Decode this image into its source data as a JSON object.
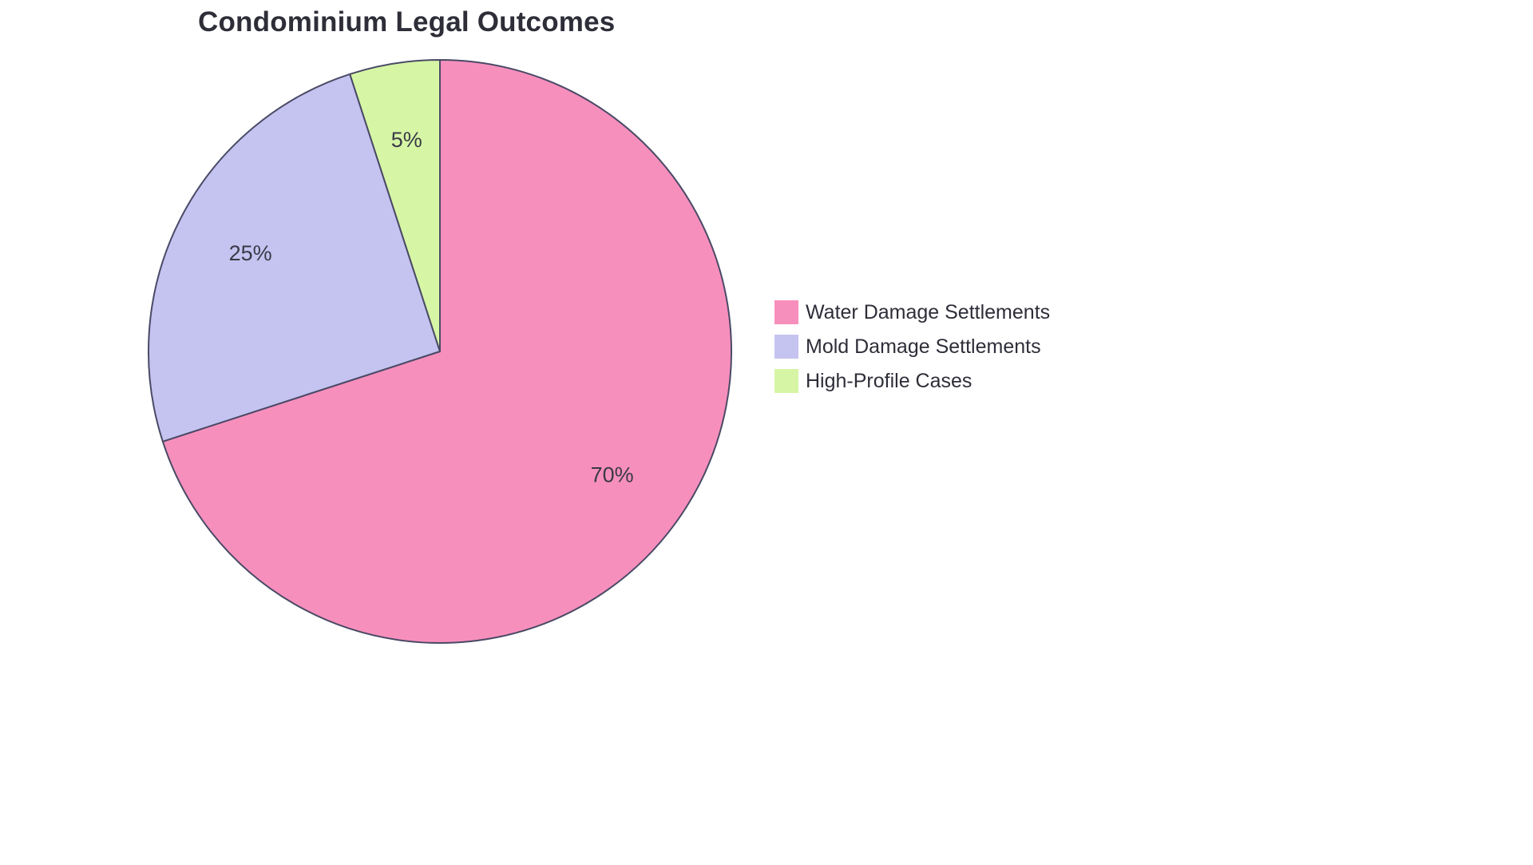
{
  "title": "Condominium Legal Outcomes",
  "chart_data": {
    "type": "pie",
    "title": "Condominium Legal Outcomes",
    "categories": [
      "Water Damage Settlements",
      "Mold Damage Settlements",
      "High-Profile Cases"
    ],
    "values": [
      70,
      25,
      5
    ],
    "unit": "%",
    "labels": [
      "70%",
      "25%",
      "5%"
    ],
    "colors": [
      "#F78FBD",
      "#C5C3F0",
      "#D6F6A5"
    ],
    "slice_border_color": "#4A4A66",
    "label_color": "#3A3A47",
    "start_angle_deg": 0,
    "direction": "clockwise",
    "legend_position": "right",
    "grid": false
  }
}
